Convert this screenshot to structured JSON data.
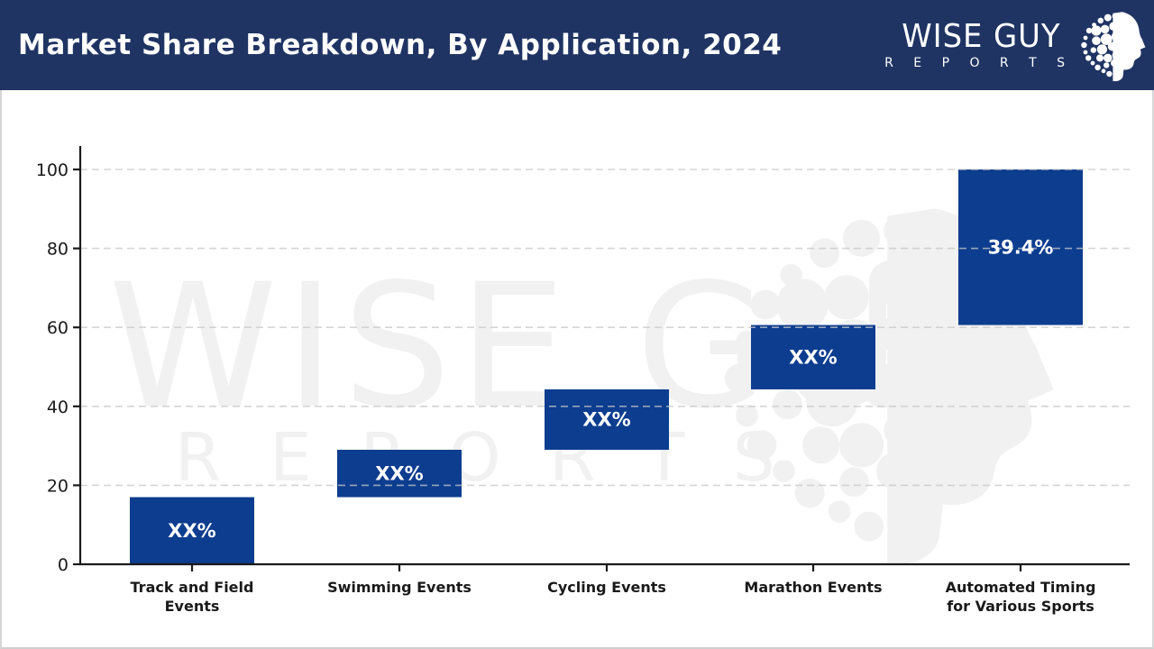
{
  "header": {
    "title": "Market Share Breakdown, By Application, 2024",
    "logo": {
      "line1": "WISE GUY",
      "line2": "R E P O R T S"
    }
  },
  "watermark": {
    "line1": "WISE GUY",
    "line2": "R E P O R T S"
  },
  "colors": {
    "header_bg": "#1f3463",
    "bar": "#0c3d8f",
    "axis": "#1a1a1a",
    "grid": "#c8c8c8",
    "tick_text": "#1a1a1a",
    "value_label": "#ffffff",
    "watermark": "#f1f1f1"
  },
  "chart_data": {
    "type": "bar",
    "subtype": "waterfall",
    "title": "Market Share Breakdown, By Application, 2024",
    "xlabel": "",
    "ylabel": "",
    "ylim": [
      0,
      100
    ],
    "yticks": [
      0,
      20,
      40,
      60,
      80,
      100
    ],
    "grid": "horizontal-dashed",
    "legend": "none",
    "categories": [
      "Track and Field Events",
      "Swimming Events",
      "Cycling Events",
      "Marathon Events",
      "Automated Timing for Various Sports"
    ],
    "category_lines": [
      [
        "Track and Field",
        "Events"
      ],
      [
        "Swimming Events"
      ],
      [
        "Cycling Events"
      ],
      [
        "Marathon Events"
      ],
      [
        "Automated Timing",
        "for Various Sports"
      ]
    ],
    "segments": [
      {
        "start": 0,
        "end": 17,
        "value": 17,
        "label": "XX%"
      },
      {
        "start": 17,
        "end": 29,
        "value": 12,
        "label": "XX%"
      },
      {
        "start": 29,
        "end": 44.3,
        "value": 15.3,
        "label": "XX%"
      },
      {
        "start": 44.3,
        "end": 60.6,
        "value": 16.3,
        "label": "XX%"
      },
      {
        "start": 60.6,
        "end": 100,
        "value": 39.4,
        "label": "39.4%"
      }
    ]
  }
}
